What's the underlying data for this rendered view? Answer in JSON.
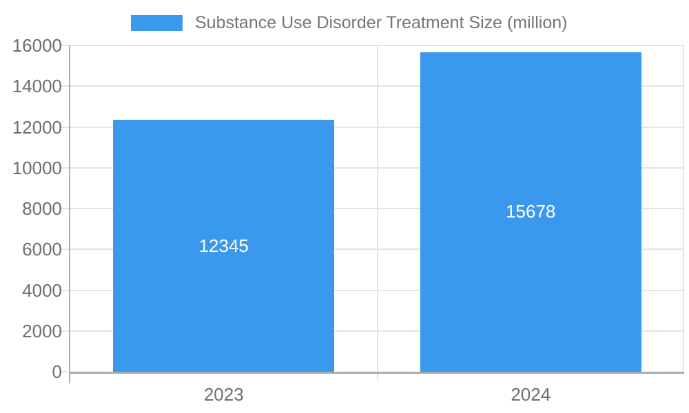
{
  "chart_data": {
    "type": "bar",
    "title": "",
    "legend": {
      "label": "Substance Use Disorder Treatment Size (million)",
      "position": "top",
      "swatch_color": "#3A99EC"
    },
    "categories": [
      "2023",
      "2024"
    ],
    "series": [
      {
        "name": "Substance Use Disorder Treatment Size (million)",
        "color": "#3A99EC",
        "values": [
          12345,
          15678
        ]
      }
    ],
    "data_labels": [
      "12345",
      "15678"
    ],
    "data_label_position": "inside-center",
    "xlabel": "",
    "ylabel": "",
    "ylim": [
      0,
      16000
    ],
    "yticks": [
      0,
      2000,
      4000,
      6000,
      8000,
      10000,
      12000,
      14000,
      16000
    ],
    "grid": true,
    "legend_position": "top",
    "bar_width_ratio": 0.72,
    "colors": {
      "bar": "#3A99EC",
      "data_label": "#ffffff",
      "axis_text": "#6e6e6e",
      "legend_text": "#757575",
      "gridline": "#e4e4e4",
      "axis_line": "#ababab",
      "baseline": "#ababab"
    }
  }
}
